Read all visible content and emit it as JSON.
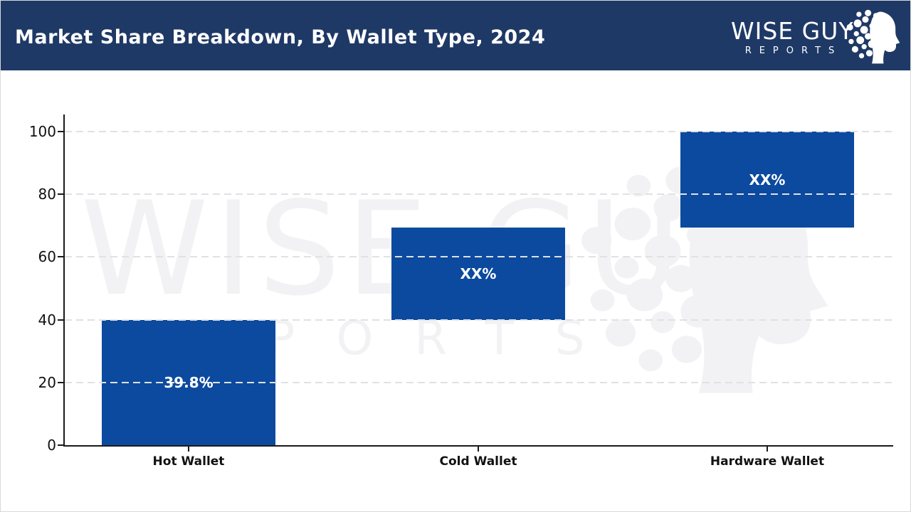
{
  "header": {
    "title": "Market Share Breakdown, By Wallet Type, 2024",
    "brand_line1": "WISE GUY",
    "brand_line2": "REPORTS"
  },
  "watermark": {
    "line1": "WISE GUY",
    "line2": "REPORTS"
  },
  "chart_data": {
    "type": "bar",
    "subtype": "waterfall",
    "title": "Market Share Breakdown, By Wallet Type, 2024",
    "categories": [
      "Hot Wallet",
      "Cold Wallet",
      "Hardware Wallet"
    ],
    "segments": [
      {
        "category": "Hot Wallet",
        "start": 0,
        "end": 39.8,
        "label": "39.8%"
      },
      {
        "category": "Cold Wallet",
        "start": 40,
        "end": 69.3,
        "label": "XX%"
      },
      {
        "category": "Hardware Wallet",
        "start": 69.3,
        "end": 100,
        "label": "XX%"
      }
    ],
    "yticks": [
      0,
      20,
      40,
      60,
      80,
      100
    ],
    "ylim": [
      0,
      105
    ],
    "xlabel": "",
    "ylabel": "",
    "grid": "horizontal-dashed",
    "legend": "none",
    "bar_color": "#0B4A9F",
    "value_label_color": "#ffffff"
  },
  "colors": {
    "header_bg": "#1F3966",
    "bar": "#0B4A9F",
    "grid": "#e1e1e3",
    "axis": "#1a1a1a",
    "watermark": "#f2f2f4",
    "frame_border": "#d9d9d9"
  }
}
